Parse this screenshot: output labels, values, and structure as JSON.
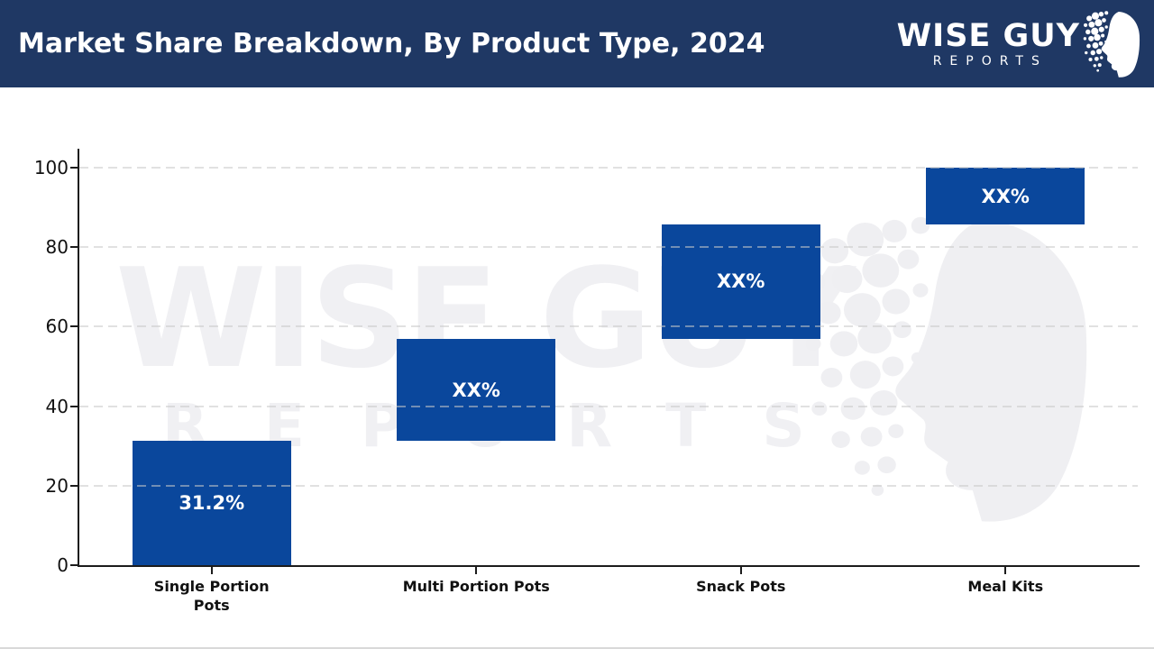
{
  "header": {
    "title": "Market Share Breakdown, By Product Type, 2024",
    "logo": {
      "wordmark": "WISE GUY",
      "subtext": "REPORTS"
    }
  },
  "watermark": {
    "wordmark": "WISE GUY",
    "subtext": "REPORTS"
  },
  "colors": {
    "header_bg": "#1f3864",
    "bar_fill": "#0a479c",
    "bar_label_text": "#ffffff",
    "grid_line": "#d9d9d9",
    "axis_line": "#1c1c1c",
    "tick_text": "#111111",
    "watermark_text": "#f0f0f3"
  },
  "chart_data": {
    "type": "bar",
    "subtype": "waterfall",
    "title": "Market Share Breakdown, By Product Type, 2024",
    "categories": [
      "Single Portion Pots",
      "Multi Portion Pots",
      "Snack Pots",
      "Meal Kits"
    ],
    "category_label_lines": [
      [
        "Single Portion",
        "Pots"
      ],
      [
        "Multi Portion Pots"
      ],
      [
        "Snack Pots"
      ],
      [
        "Meal Kits"
      ]
    ],
    "series": [
      {
        "name": "Market share (%)",
        "segments": [
          [
            0,
            31.2
          ],
          [
            31.2,
            57.0
          ],
          [
            57.0,
            85.7
          ],
          [
            85.7,
            100.0
          ]
        ]
      }
    ],
    "bar_labels": [
      "31.2%",
      "XX%",
      "XX%",
      "XX%"
    ],
    "ylim": [
      0,
      100
    ],
    "yticks": [
      0,
      20,
      40,
      60,
      80,
      100
    ],
    "xlabel": "",
    "ylabel": "",
    "grid": "horizontal-dashed",
    "legend": "none"
  }
}
